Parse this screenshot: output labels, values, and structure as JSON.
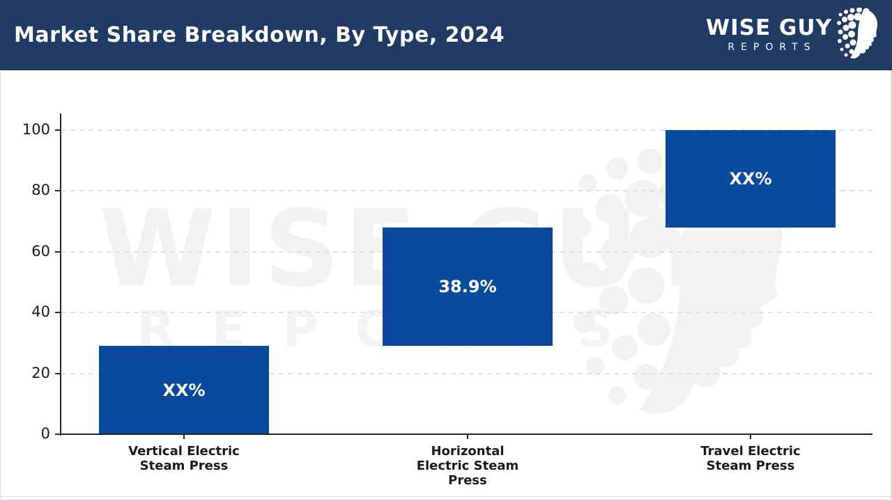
{
  "header": {
    "title": "Market Share Breakdown, By Type, 2024",
    "bg_color": "#1f3a63",
    "logo": {
      "wordmark": "WISE GUY",
      "subtext": "REPORTS"
    }
  },
  "watermark": {
    "wordmark": "WISE GUY",
    "subtext": "REPORTS"
  },
  "chart_data": {
    "type": "bar",
    "subtype": "floating-waterfall",
    "title": "Market Share Breakdown, By Type, 2024",
    "categories": [
      "Vertical Electric Steam Press",
      "Horizontal Electric Steam Press",
      "Travel Electric Steam Press"
    ],
    "category_label_lines": [
      [
        "Vertical Electric",
        "Steam Press"
      ],
      [
        "Horizontal",
        "Electric Steam",
        "Press"
      ],
      [
        "Travel Electric",
        "Steam Press"
      ]
    ],
    "segments": [
      {
        "category": "Vertical Electric Steam Press",
        "start": 0,
        "end": 29,
        "label": "XX%"
      },
      {
        "category": "Horizontal Electric Steam Press",
        "start": 29,
        "end": 67.9,
        "label": "38.9%"
      },
      {
        "category": "Travel Electric Steam Press",
        "start": 67.9,
        "end": 100,
        "label": "XX%"
      }
    ],
    "yticks": [
      0,
      20,
      40,
      60,
      80,
      100
    ],
    "ylim": [
      0,
      105.5
    ],
    "grid": "horizontal-dashed",
    "legend": "none",
    "bar_color": "#0a4a9c",
    "bar_label_color": "#ffffff"
  }
}
